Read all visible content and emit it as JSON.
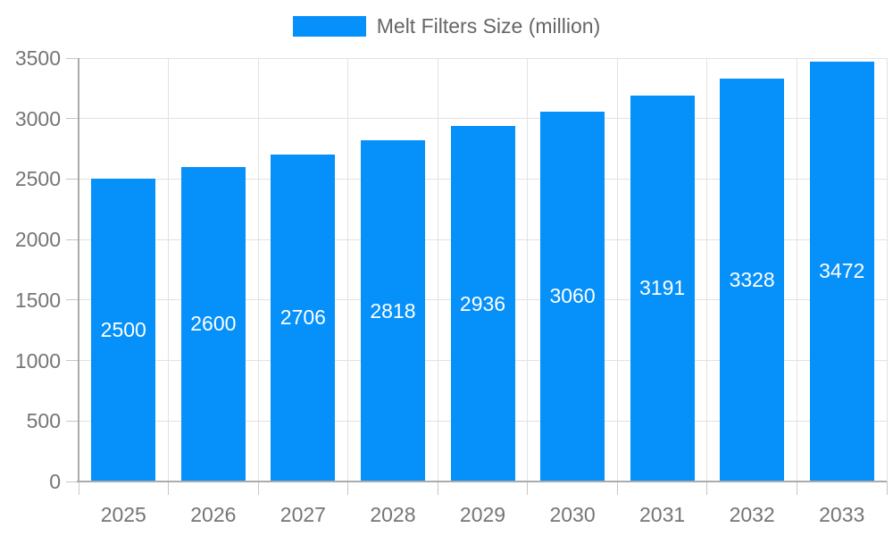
{
  "legend": {
    "label": "Melt Filters Size (million)"
  },
  "colors": {
    "bar": "#0690FA",
    "axis": "#ababab",
    "grid": "#e2e2e2",
    "tick": "#c6c6c6",
    "axis_label": "#757575",
    "bar_value_label": "#ffffff",
    "legend_text": "#666666",
    "background": "#ffffff"
  },
  "chart_data": {
    "type": "bar",
    "title": "",
    "categories": [
      "2025",
      "2026",
      "2027",
      "2028",
      "2029",
      "2030",
      "2031",
      "2032",
      "2033"
    ],
    "values": [
      2500,
      2600,
      2706,
      2818,
      2936,
      3060,
      3191,
      3328,
      3472
    ],
    "legend": "Melt Filters Size (million)",
    "legend_position": "top-center",
    "xlabel": "",
    "ylabel": "",
    "ylim": [
      0,
      3500
    ],
    "yticks": [
      0,
      500,
      1000,
      1500,
      2000,
      2500,
      3000,
      3500
    ],
    "grid": true,
    "value_labels": "inside-middle-white",
    "bar_width_fraction": 0.72
  }
}
